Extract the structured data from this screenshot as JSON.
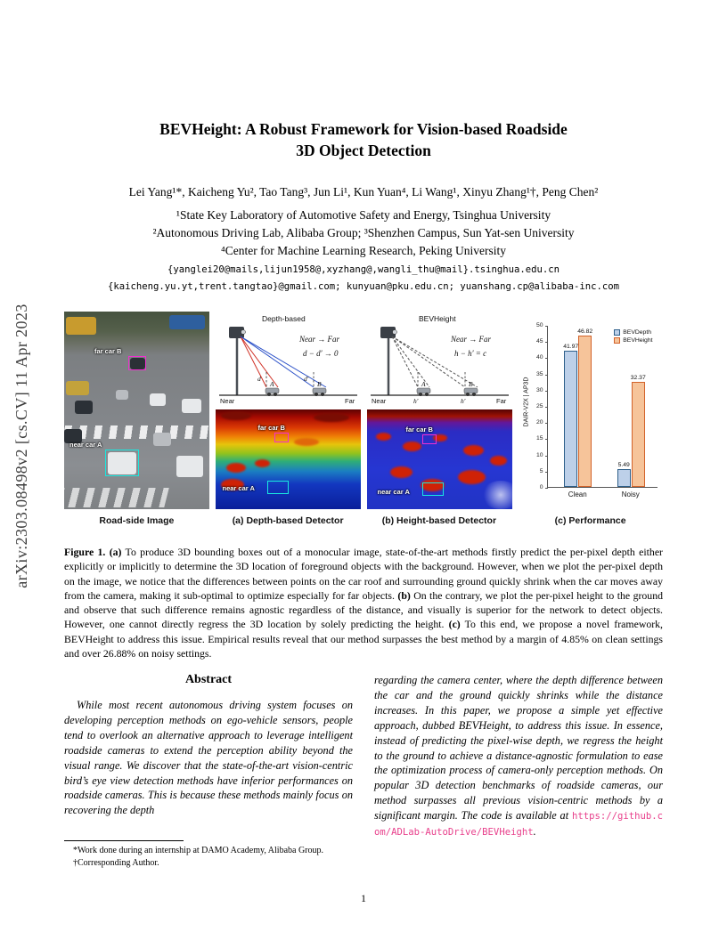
{
  "arxiv_banner": "arXiv:2303.08498v2  [cs.CV]  11 Apr 2023",
  "header": {
    "title_line1": "BEVHeight: A Robust Framework for Vision-based Roadside",
    "title_line2": "3D Object Detection",
    "authors": "Lei Yang¹*, Kaicheng Yu², Tao Tang³, Jun Li¹, Kun Yuan⁴, Li Wang¹, Xinyu Zhang¹†, Peng Chen²",
    "affil1": "¹State Key Laboratory of Automotive Safety and Energy, Tsinghua University",
    "affil2": "²Autonomous Driving Lab, Alibaba Group; ³Shenzhen Campus, Sun Yat-sen University",
    "affil3": "⁴Center for Machine Learning Research, Peking University",
    "email1": "{yanglei20@mails,lijun1958@,xyzhang@,wangli_thu@mail}.tsinghua.edu.cn",
    "email2": "{kaicheng.yu.yt,trent.tangtao}@gmail.com; kunyuan@pku.edu.cn; yuanshang.cp@alibaba-inc.com"
  },
  "figure": {
    "panel_labels": [
      "Road-side Image",
      "(a) Depth-based Detector",
      "(b) Height-based Detector",
      "(c) Performance"
    ],
    "photo": {
      "far_label": "far car B",
      "near_label": "near car A"
    },
    "depth_diagram": {
      "title": "Depth-based",
      "near_far": "Near → Far",
      "formula": "d − d′ → 0",
      "near": "Near",
      "far": "Far",
      "car_a": "A",
      "car_b": "B",
      "d1": "d",
      "d2": "d′"
    },
    "height_diagram": {
      "title": "BEVHeight",
      "near_far": "Near → Far",
      "formula": "h − h′ = c",
      "near": "Near",
      "far": "Far",
      "car_a": "A",
      "car_b": "B",
      "h1": "h′",
      "h2": "h′"
    },
    "depth_map": {
      "far_label": "far car B",
      "near_label": "near car A"
    },
    "height_map": {
      "far_label": "far car B",
      "near_label": "near car A"
    }
  },
  "chart_data": {
    "type": "bar",
    "categories": [
      "Clean",
      "Noisy"
    ],
    "series": [
      {
        "name": "BEVDepth",
        "values": [
          41.97,
          5.49
        ],
        "fill": "#bdd0e9",
        "border": "#2e5f8a"
      },
      {
        "name": "BEVHeight",
        "values": [
          46.82,
          32.37
        ],
        "fill": "#f6c49a",
        "border": "#d2622a"
      }
    ],
    "ylabel": "DAIR-V2X | AP3D",
    "ylim": [
      0,
      50
    ],
    "ytick_step": 5,
    "legend_position": "top-right"
  },
  "caption": {
    "b1": "Figure 1. (a)",
    "t1": " To produce 3D bounding boxes out of a monocular image, state-of-the-art methods firstly predict the per-pixel depth either explicitly or implicitly to determine the 3D location of foreground objects with the background. However, when we plot the per-pixel depth on the image, we notice that the differences between points on the car roof and surrounding ground quickly shrink when the car moves away from the camera, making it sub-optimal to optimize especially for far objects. ",
    "b2": "(b)",
    "t2": " On the contrary, we plot the per-pixel height to the ground and observe that such difference remains agnostic regardless of the distance, and visually is superior for the network to detect objects. However, one cannot directly regress the 3D location by solely predicting the height. ",
    "b3": "(c)",
    "t3": " To this end, we propose a novel framework, BEVHeight to address this issue. Empirical results reveal that our method surpasses the best method by a margin of 4.85% on clean settings and over 26.88% on noisy settings."
  },
  "abstract": {
    "heading": "Abstract",
    "col1": "While most recent autonomous driving system focuses on developing perception methods on ego-vehicle sensors, people tend to overlook an alternative approach to leverage intelligent roadside cameras to extend the perception ability beyond the visual range. We discover that the state-of-the-art vision-centric bird’s eye view detection methods have inferior performances on roadside cameras. This is because these methods mainly focus on recovering the depth",
    "col2_text": "regarding the camera center, where the depth difference between the car and the ground quickly shrinks while the distance increases. In this paper, we propose a simple yet effective approach, dubbed BEVHeight, to address this issue. In essence, instead of predicting the pixel-wise depth, we regress the height to the ground to achieve a distance-agnostic formulation to ease the optimization process of camera-only perception methods. On popular 3D detection benchmarks of roadside cameras, our method surpasses all previous vision-centric methods by a significant margin. The code is available at ",
    "col2_link": "https://github.com/ADLab-AutoDrive/BEVHeight",
    "col2_end": "."
  },
  "footnotes": {
    "line1": "*Work done during an internship at DAMO Academy, Alibaba Group.",
    "line2": "†Corresponding Author."
  },
  "page": {
    "number": "1"
  },
  "colors": {
    "link": "#e8418c",
    "far_box": "#f02fd0",
    "near_box": "#19e8e0"
  }
}
